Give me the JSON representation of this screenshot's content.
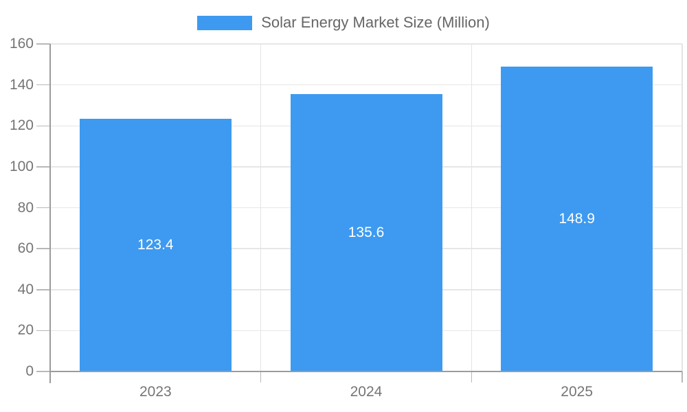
{
  "legend": {
    "label": "Solar Energy Market Size (Million)"
  },
  "chart_data": {
    "type": "bar",
    "title": "Solar Energy Market Size (Million)",
    "categories": [
      "2023",
      "2024",
      "2025"
    ],
    "values": [
      123.4,
      135.6,
      148.9
    ],
    "value_labels": [
      "123.4",
      "135.6",
      "148.9"
    ],
    "xlabel": "",
    "ylabel": "",
    "ylim": [
      0,
      160
    ],
    "y_ticks": [
      "0",
      "20",
      "40",
      "60",
      "80",
      "100",
      "120",
      "140",
      "160"
    ],
    "grid": true,
    "legend_position": "top",
    "bar_color": "#3d9af0",
    "value_label_color": "#ffffff",
    "gridline_color": "#e6e6e6",
    "axis_color": "#9b9b9b",
    "tick_label_color": "#757575",
    "legend_text_color": "#666666",
    "background_color": "#ffffff"
  }
}
